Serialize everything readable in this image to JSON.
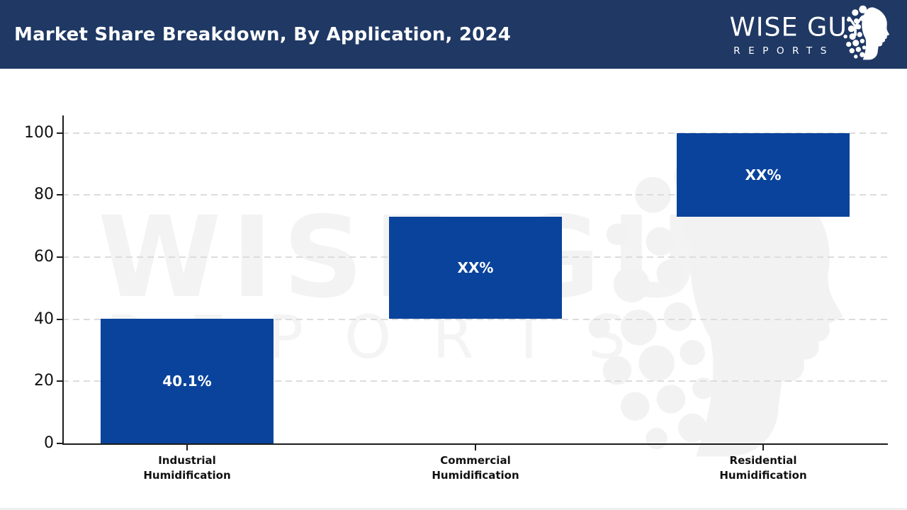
{
  "header": {
    "title": "Market Share Breakdown, By Application, 2024",
    "bg_color": "#1f3864",
    "logo": {
      "line1": "WISE GUY",
      "line2": "REPORTS"
    }
  },
  "watermark": {
    "line1": "WISE GUY",
    "line2": "REPORTS"
  },
  "chart_data": {
    "type": "bar",
    "subtype": "waterfall-stacked-percentage",
    "title": "Market Share Breakdown, By Application, 2024",
    "categories": [
      {
        "line1": "Industrial",
        "line2": "Humidification"
      },
      {
        "line1": "Commercial",
        "line2": "Humidification"
      },
      {
        "line1": "Residential",
        "line2": "Humidification"
      }
    ],
    "segments": [
      {
        "category": "Industrial Humidification",
        "start": 0,
        "end": 40.1,
        "label": "40.1%"
      },
      {
        "category": "Commercial Humidification",
        "start": 40.1,
        "end": 73,
        "label": "XX%"
      },
      {
        "category": "Residential Humidification",
        "start": 73,
        "end": 100,
        "label": "XX%"
      }
    ],
    "yticks": [
      0,
      20,
      40,
      60,
      80,
      100
    ],
    "ylim": [
      0,
      105
    ],
    "grid": "horizontal-dashed",
    "legend": "none",
    "bar_color": "#0a439b",
    "bar_label_color": "#ffffff",
    "axis_color": "#1c1c1c"
  }
}
